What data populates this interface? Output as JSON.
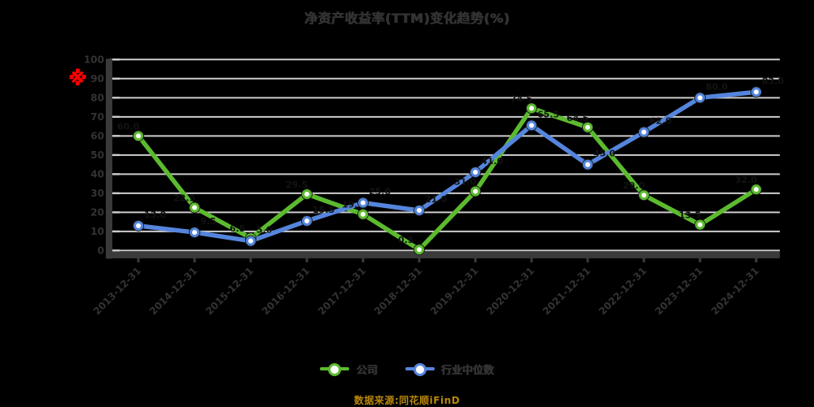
{
  "title": "净资产收益率(TTM)变化趋势(%)",
  "annotations": {
    "red_mark": "※"
  },
  "y_axis": {
    "tick_labels": [
      "0",
      "10",
      "20",
      "30",
      "40",
      "50",
      "60",
      "70",
      "80",
      "90",
      "100"
    ]
  },
  "chart_data": {
    "type": "line",
    "title": "净资产收益率(TTM)变化趋势(%)",
    "categories": [
      "2013-12-31",
      "2014-12-31",
      "2015-12-31",
      "2016-12-31",
      "2017-12-31",
      "2018-12-31",
      "2019-12-31",
      "2020-12-31",
      "2021-12-31",
      "2022-12-31",
      "2023-12-31",
      "2024-12-31"
    ],
    "ylim": [
      0,
      100
    ],
    "y_ticks": [
      0,
      10,
      20,
      30,
      40,
      50,
      60,
      70,
      80,
      90,
      100
    ],
    "grid": true,
    "legend_position": "bottom",
    "series": [
      {
        "name": "公司",
        "color": "#5cba2f",
        "values": [
          60.0,
          22.5,
          6.5,
          29.5,
          19.0,
          0.5,
          31.0,
          74.5,
          64.5,
          29.0,
          13.5,
          32.0
        ]
      },
      {
        "name": "行业中位数",
        "color": "#5585dc",
        "values": [
          13.0,
          9.5,
          5.0,
          15.5,
          25.0,
          21.0,
          41.0,
          65.5,
          45.0,
          62.0,
          80.0,
          83.0
        ]
      }
    ]
  },
  "legend": {
    "items": [
      {
        "label": "公司",
        "color": "#5cba2f"
      },
      {
        "label": "行业中位数",
        "color": "#5585dc"
      }
    ]
  },
  "footer": {
    "source_text": "数据来源:同花顺iFinD",
    "color": "#b8860b"
  },
  "style_colors": {
    "background": "#000000",
    "axis": "#3a3a3a",
    "gridline": "#cdcdcd",
    "text": "#333333",
    "data_label": "#131313",
    "red_mark": "#ff0000"
  }
}
